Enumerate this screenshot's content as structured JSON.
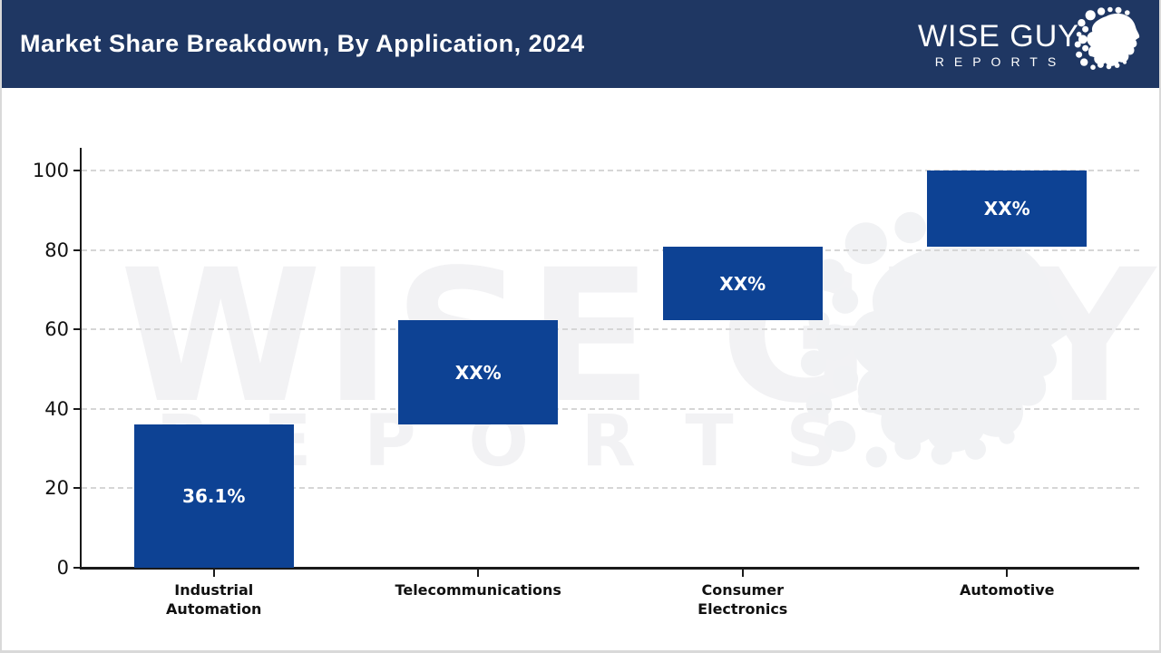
{
  "header": {
    "title": "Market Share Breakdown, By Application, 2024",
    "logo": {
      "line1": "WISE GUY",
      "line2": "REPORTS"
    }
  },
  "watermark": {
    "line1": "WISE GUY",
    "line2": "REPORTS"
  },
  "chart_data": {
    "type": "bar",
    "subtype": "waterfall",
    "title": "Market Share Breakdown, By Application, 2024",
    "xlabel": "",
    "ylabel": "",
    "ylim": [
      0,
      100
    ],
    "yticks": [
      0,
      20,
      40,
      60,
      80,
      100
    ],
    "grid": {
      "orientation": "horizontal",
      "style": "dashed",
      "color": "#d6d6d6"
    },
    "legend": "none",
    "categories": [
      "Industrial Automation",
      "Telecommunications",
      "Consumer Electronics",
      "Automotive"
    ],
    "bars": [
      {
        "category": "Industrial Automation",
        "category_lines": [
          "Industrial",
          "Automation"
        ],
        "start": 0,
        "end": 36.1,
        "label": "36.1%"
      },
      {
        "category": "Telecommunications",
        "category_lines": [
          "Telecommunications"
        ],
        "start": 36.1,
        "end": 62.3,
        "label": "XX%"
      },
      {
        "category": "Consumer Electronics",
        "category_lines": [
          "Consumer",
          "Electronics"
        ],
        "start": 62.3,
        "end": 80.8,
        "label": "XX%"
      },
      {
        "category": "Automotive",
        "category_lines": [
          "Automotive"
        ],
        "start": 80.8,
        "end": 100,
        "label": "XX%"
      }
    ],
    "colors": {
      "bar": "#0d4294",
      "bar_label": "#ffffff",
      "axis": "#1a1a1a"
    }
  }
}
